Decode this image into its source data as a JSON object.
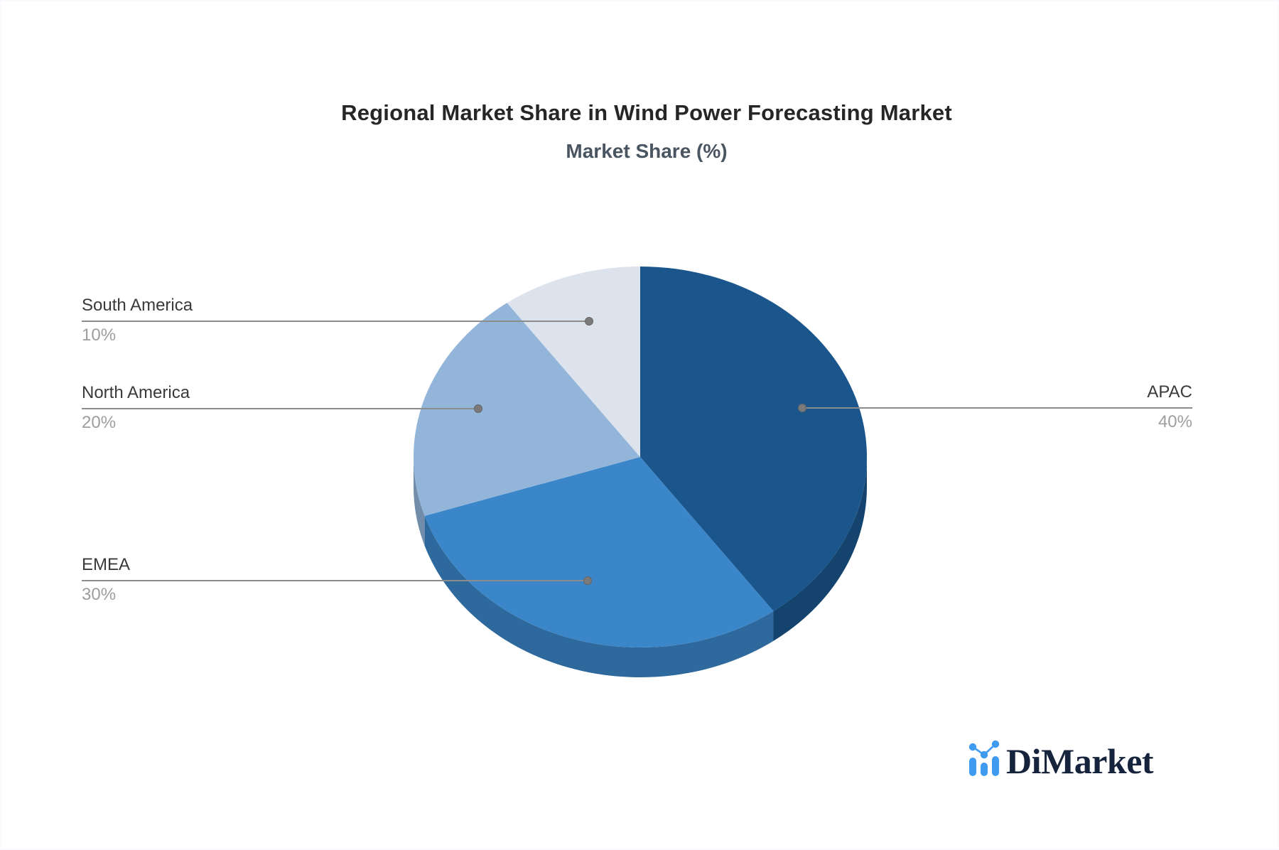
{
  "title": "Regional Market Share in Wind Power Forecasting Market",
  "subtitle": "Market Share (%)",
  "chart_data": {
    "type": "pie",
    "style": "3d",
    "title": "Regional Market Share in Wind Power Forecasting Market",
    "subtitle": "Market Share (%)",
    "unit": "%",
    "start_angle_deg": 0,
    "direction": "clockwise",
    "legend": "none",
    "slices": [
      {
        "label": "APAC",
        "value": 40,
        "display": "40%",
        "color": "#1a568c"
      },
      {
        "label": "EMEA",
        "value": 30,
        "display": "30%",
        "color": "#3a86c8"
      },
      {
        "label": "North America",
        "value": 20,
        "display": "20%",
        "color": "#92b5d9"
      },
      {
        "label": "South America",
        "value": 10,
        "display": "10%",
        "color": "#dde3ed"
      }
    ],
    "leader_line_color": "#8c8c8c",
    "leader_dot_color": "#7a7a7a",
    "label_color": "#3a3a3a",
    "value_color": "#9e9e9e"
  },
  "logo": {
    "brand": "DiMarket",
    "icon": "bar-chart-with-trend-icon",
    "icon_color": "#3f9bf0",
    "text_color": "#16233c"
  }
}
